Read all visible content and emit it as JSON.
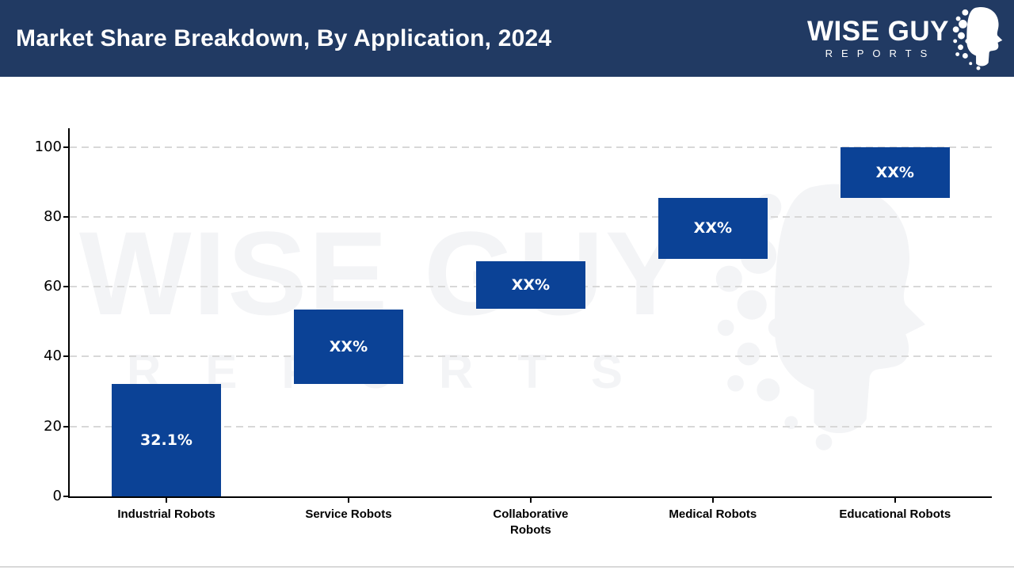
{
  "header": {
    "title": "Market Share Breakdown, By Application, 2024",
    "brand_name": "WISE GUY",
    "brand_sub": "REPORTS"
  },
  "watermark": {
    "line1": "WISE GUY",
    "line2": "REPORTS"
  },
  "colors": {
    "header_bg": "#213a63",
    "bar_blue": "#0b4296",
    "grid": "#d8d8d8",
    "watermark": "#f3f4f6",
    "text_white": "#ffffff",
    "text_black": "#000000"
  },
  "chart_data": {
    "type": "bar",
    "variant": "floating-segment-waterfall",
    "title": "Market Share Breakdown, By Application, 2024",
    "categories": [
      "Industrial Robots",
      "Service Robots",
      "Collaborative\nRobots",
      "Medical Robots",
      "Educational Robots"
    ],
    "segments": [
      {
        "category": "Industrial Robots",
        "from": 0,
        "to": 32.1,
        "label": "32.1%"
      },
      {
        "category": "Service Robots",
        "from": 32.2,
        "to": 53.5,
        "label": "XX%"
      },
      {
        "category": "Collaborative Robots",
        "from": 53.7,
        "to": 67.3,
        "label": "XX%"
      },
      {
        "category": "Medical Robots",
        "from": 67.9,
        "to": 85.5,
        "label": "XX%"
      },
      {
        "category": "Educational Robots",
        "from": 85.5,
        "to": 99.9,
        "label": "XX%"
      }
    ],
    "xlabel": "",
    "ylabel": "",
    "ylim": [
      0,
      105
    ],
    "yticks": [
      0,
      20,
      40,
      60,
      80,
      100
    ],
    "grid": "horizontal-dashed",
    "legend": "none",
    "bar_color": "#0b4296",
    "unit": "percent"
  }
}
